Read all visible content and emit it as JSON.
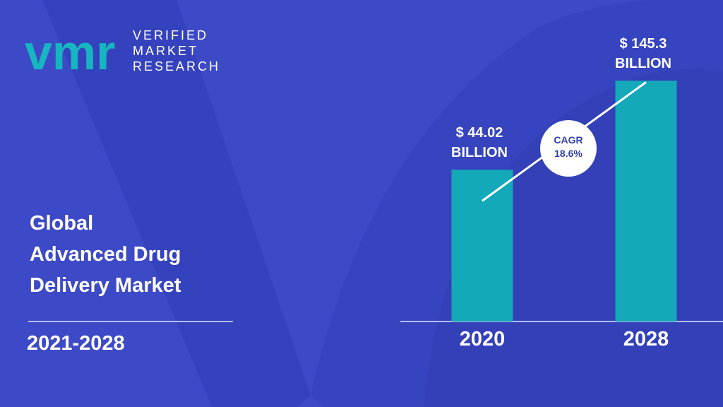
{
  "logo": {
    "mark": "vmr",
    "lines": [
      "VERIFIED",
      "MARKET",
      "RESEARCH"
    ]
  },
  "chart_data": {
    "type": "bar",
    "title": [
      "Global",
      "Advanced Drug",
      "Delivery Market"
    ],
    "period": "2021-2028",
    "categories": [
      "2020",
      "2028"
    ],
    "values": [
      44.02,
      145.3
    ],
    "value_labels": [
      "$ 44.02 BILLION",
      "$ 145.3 BILLION"
    ],
    "color": "#14a9b8",
    "annotation": {
      "label": "CAGR",
      "value": 18.6,
      "value_label": "18.6%"
    }
  }
}
